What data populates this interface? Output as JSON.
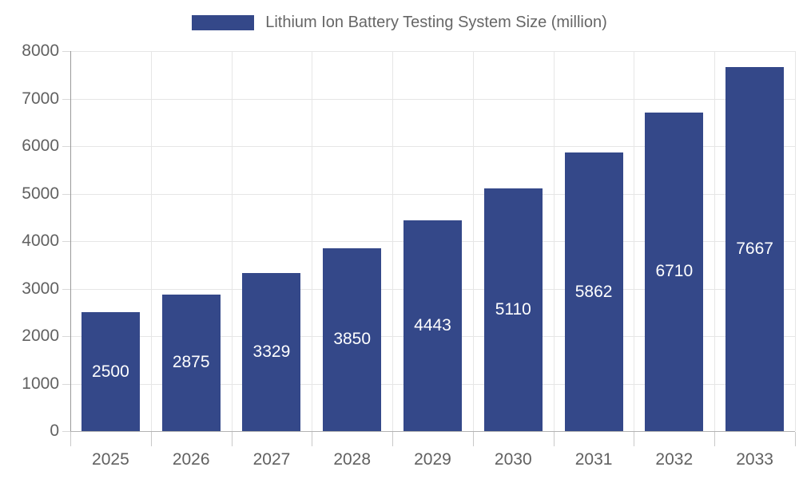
{
  "legend": {
    "label": "Lithium Ion Battery Testing System Size (million)"
  },
  "chart_data": {
    "type": "bar",
    "title": "Lithium Ion Battery Testing System Size (million)",
    "categories": [
      "2025",
      "2026",
      "2027",
      "2028",
      "2029",
      "2030",
      "2031",
      "2032",
      "2033"
    ],
    "values": [
      2500,
      2875,
      3329,
      3850,
      4443,
      5110,
      5862,
      6710,
      7667
    ],
    "xlabel": "",
    "ylabel": "",
    "ylim": [
      0,
      8000
    ],
    "y_tick_step": 1000,
    "y_tick_labels": [
      "0",
      "1000",
      "2000",
      "3000",
      "4000",
      "5000",
      "6000",
      "7000",
      "8000"
    ],
    "grid": true,
    "legend_position": "top",
    "value_label_position": "inside-center",
    "colors": {
      "bar": "#344889",
      "value_label": "#ffffff",
      "grid_line": "#e6e6e6",
      "y_axis_line": "#9a9a9a",
      "x_axis_line": "#b3b3b3",
      "y_tick_mark": "#d9d9d9",
      "x_tick_mark": "#c9c9c9",
      "tick_label": "#616161",
      "legend_text": "#666666",
      "background": "#ffffff"
    }
  }
}
